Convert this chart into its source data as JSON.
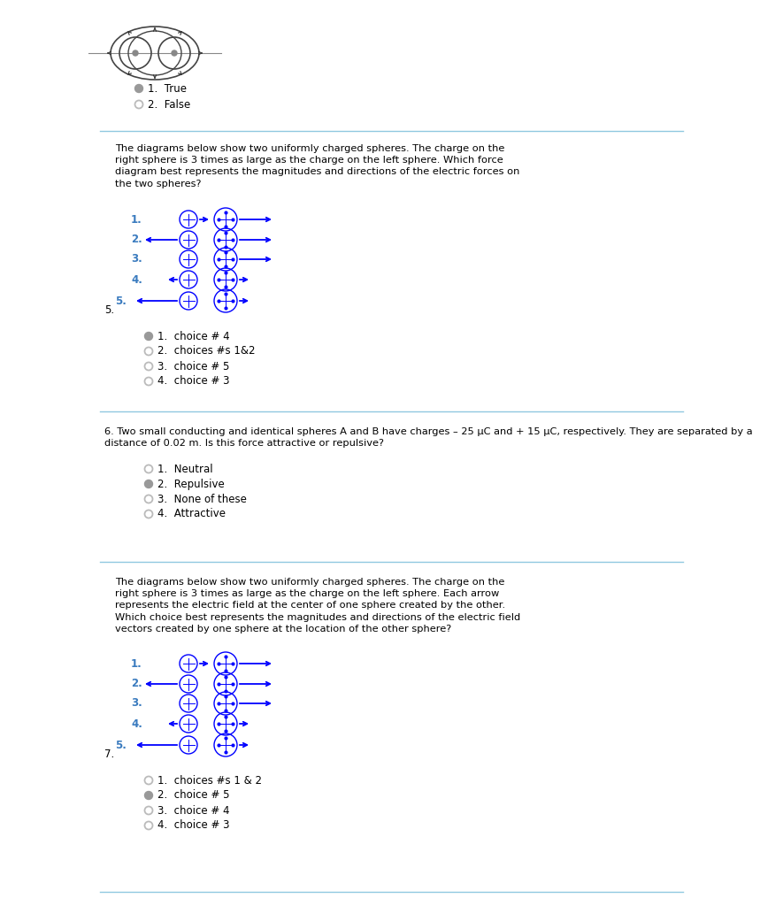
{
  "bg_color": "#ffffff",
  "text_color": "#000000",
  "blue_color": "#3a7bbf",
  "separator_color": "#90c8e0",
  "radio_filled_color": "#999999",
  "radio_empty_color": "#bbbbbb",
  "section1": {
    "answers": [
      {
        "num": "1.",
        "text": "True",
        "filled": true
      },
      {
        "num": "2.",
        "text": "False",
        "filled": false
      }
    ]
  },
  "section2": {
    "question": "The diagrams below show two uniformly charged spheres. The charge on the\nright sphere is 3 times as large as the charge on the left sphere. Which force\ndiagram best represents the magnitudes and directions of the electric forces on\nthe two spheres?",
    "question_num": "5.",
    "rows": [
      {
        "label": "1.",
        "left_arrow": "right_short",
        "right_arrow": "right_long"
      },
      {
        "label": "2.",
        "left_arrow": "left_long",
        "right_arrow": "right_long"
      },
      {
        "label": "3.",
        "left_arrow": "none",
        "right_arrow": "right_long"
      },
      {
        "label": "4.",
        "left_arrow": "left_short",
        "right_arrow": "right_short"
      },
      {
        "label": "5.",
        "left_arrow": "left_long2",
        "right_arrow": "right_short"
      }
    ],
    "answers": [
      {
        "num": "1.",
        "text": "choice # 4",
        "filled": true
      },
      {
        "num": "2.",
        "text": "choices #s 1&2",
        "filled": false
      },
      {
        "num": "3.",
        "text": "choice # 5",
        "filled": false
      },
      {
        "num": "4.",
        "text": "choice # 3",
        "filled": false
      }
    ]
  },
  "section3": {
    "question": "6. Two small conducting and identical spheres A and B have charges – 25 μC and + 15 μC, respectively. They are separated by a\ndistance of 0.02 m. Is this force attractive or repulsive?",
    "answers": [
      {
        "num": "1.",
        "text": "Neutral",
        "filled": false
      },
      {
        "num": "2.",
        "text": "Repulsive",
        "filled": true
      },
      {
        "num": "3.",
        "text": "None of these",
        "filled": false
      },
      {
        "num": "4.",
        "text": "Attractive",
        "filled": false
      }
    ]
  },
  "section4": {
    "question": "The diagrams below show two uniformly charged spheres. The charge on the\nright sphere is 3 times as large as the charge on the left sphere. Each arrow\nrepresents the electric field at the center of one sphere created by the other.\nWhich choice best represents the magnitudes and directions of the electric field\nvectors created by one sphere at the location of the other sphere?",
    "question_num": "7.",
    "rows": [
      {
        "label": "1.",
        "left_arrow": "right_short",
        "right_arrow": "right_long"
      },
      {
        "label": "2.",
        "left_arrow": "left_long",
        "right_arrow": "right_long"
      },
      {
        "label": "3.",
        "left_arrow": "none",
        "right_arrow": "right_long"
      },
      {
        "label": "4.",
        "left_arrow": "left_short",
        "right_arrow": "right_short"
      },
      {
        "label": "5.",
        "left_arrow": "left_long2",
        "right_arrow": "right_short"
      }
    ],
    "answers": [
      {
        "num": "1.",
        "text": "choices #s 1 & 2",
        "filled": false
      },
      {
        "num": "2.",
        "text": "choice # 5",
        "filled": true
      },
      {
        "num": "3.",
        "text": "choice # 4",
        "filled": false
      },
      {
        "num": "4.",
        "text": "choice # 3",
        "filled": false
      }
    ]
  }
}
